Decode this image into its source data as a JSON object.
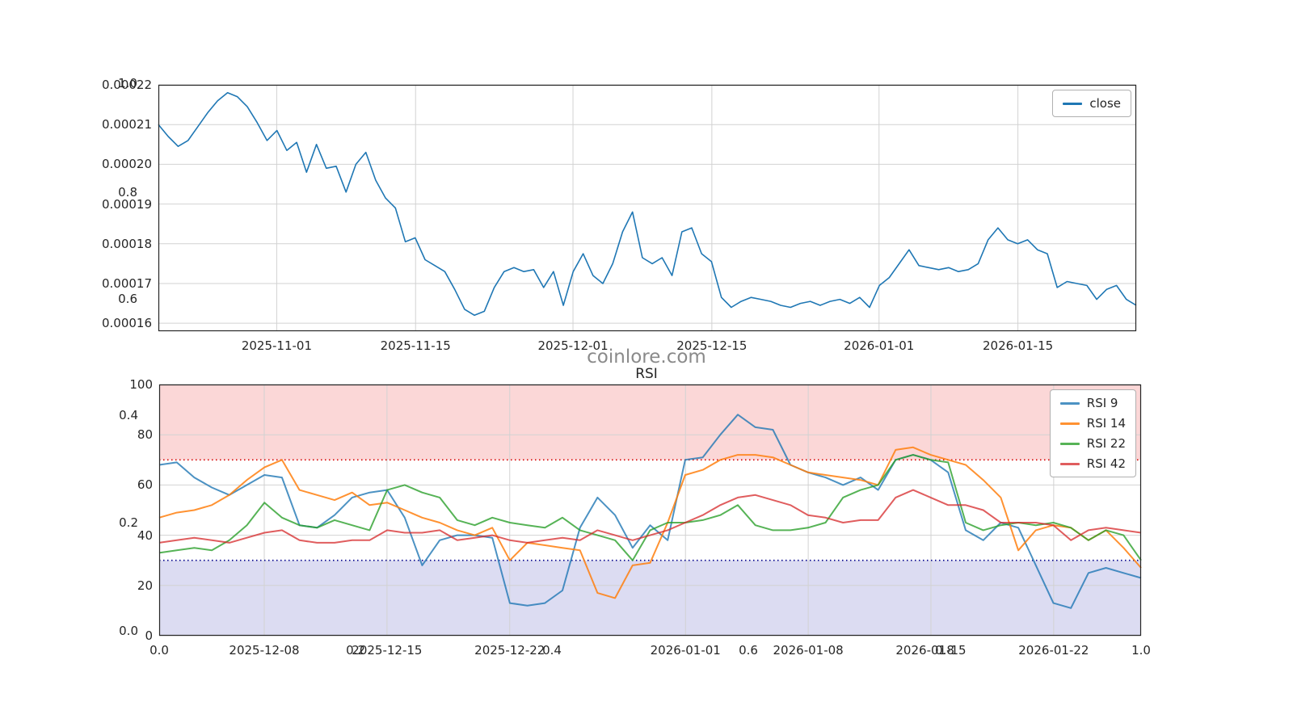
{
  "watermark": "coinlore.com",
  "chart_data": [
    {
      "id": "price",
      "type": "line",
      "title": "",
      "ylim": [
        0.000158,
        0.00022
      ],
      "yticks": [
        {
          "v": 0.00022,
          "label": "0.00022"
        },
        {
          "v": 0.00021,
          "label": "0.00021"
        },
        {
          "v": 0.0002,
          "label": "0.00020"
        },
        {
          "v": 0.00019,
          "label": "0.00019"
        },
        {
          "v": 0.00018,
          "label": "0.00018"
        },
        {
          "v": 0.00017,
          "label": "0.00017"
        },
        {
          "v": 0.00016,
          "label": "0.00016"
        }
      ],
      "xticks": [
        {
          "f": 0.121,
          "label": "2025-11-01"
        },
        {
          "f": 0.263,
          "label": "2025-11-15"
        },
        {
          "f": 0.424,
          "label": "2025-12-01"
        },
        {
          "f": 0.566,
          "label": "2025-12-15"
        },
        {
          "f": 0.737,
          "label": "2026-01-01"
        },
        {
          "f": 0.879,
          "label": "2026-01-15"
        }
      ],
      "extra_yticks": [
        {
          "fy": 1.005,
          "label": "1.0"
        },
        {
          "fy": 0.564,
          "label": "0.8"
        },
        {
          "fy": 0.131,
          "label": "0.6"
        }
      ],
      "extra_xticks": [],
      "bands": [],
      "hlines": [],
      "legend": [
        {
          "label": "close",
          "color": "#1f77b4",
          "opacity": 1
        }
      ],
      "series": [
        {
          "name": "close",
          "color": "#1f77b4",
          "opacity": 1,
          "width": 1.6,
          "values": [
            0.00021,
            0.000207,
            0.0002045,
            0.000206,
            0.0002095,
            0.000213,
            0.000216,
            0.000218,
            0.000217,
            0.0002145,
            0.0002105,
            0.000206,
            0.0002085,
            0.0002035,
            0.0002055,
            0.000198,
            0.000205,
            0.000199,
            0.0001995,
            0.000193,
            0.0002,
            0.000203,
            0.000196,
            0.0001915,
            0.000189,
            0.0001805,
            0.0001815,
            0.000176,
            0.0001745,
            0.000173,
            0.0001685,
            0.0001635,
            0.000162,
            0.000163,
            0.000169,
            0.000173,
            0.000174,
            0.000173,
            0.0001735,
            0.000169,
            0.000173,
            0.0001645,
            0.000173,
            0.0001775,
            0.000172,
            0.00017,
            0.000175,
            0.000183,
            0.000188,
            0.0001765,
            0.000175,
            0.0001765,
            0.000172,
            0.000183,
            0.000184,
            0.0001775,
            0.0001755,
            0.0001665,
            0.000164,
            0.0001655,
            0.0001665,
            0.000166,
            0.0001655,
            0.0001645,
            0.000164,
            0.000165,
            0.0001655,
            0.0001645,
            0.0001655,
            0.000166,
            0.000165,
            0.0001665,
            0.000164,
            0.0001695,
            0.0001715,
            0.000175,
            0.0001785,
            0.0001745,
            0.000174,
            0.0001735,
            0.000174,
            0.000173,
            0.0001735,
            0.000175,
            0.000181,
            0.000184,
            0.000181,
            0.00018,
            0.000181,
            0.0001785,
            0.0001775,
            0.000169,
            0.0001705,
            0.00017,
            0.0001695,
            0.000166,
            0.0001685,
            0.0001695,
            0.000166,
            0.0001645
          ]
        }
      ]
    },
    {
      "id": "rsi",
      "type": "line",
      "title": "RSI",
      "ylim": [
        0,
        100
      ],
      "yticks": [
        {
          "v": 100,
          "label": "100"
        },
        {
          "v": 80,
          "label": "80"
        },
        {
          "v": 60,
          "label": "60"
        },
        {
          "v": 40,
          "label": "40"
        },
        {
          "v": 20,
          "label": "20"
        },
        {
          "v": 0,
          "label": "0"
        }
      ],
      "xticks": [
        {
          "f": 0.107,
          "label": "2025-12-08"
        },
        {
          "f": 0.232,
          "label": "2025-12-15"
        },
        {
          "f": 0.357,
          "label": "2025-12-22"
        },
        {
          "f": 0.536,
          "label": "2026-01-01"
        },
        {
          "f": 0.661,
          "label": "2026-01-08"
        },
        {
          "f": 0.786,
          "label": "2026-01-15"
        },
        {
          "f": 0.911,
          "label": "2026-01-22"
        }
      ],
      "extra_yticks": [
        {
          "fy": 0.878,
          "label": "0.4"
        },
        {
          "fy": 0.45,
          "label": "0.2"
        },
        {
          "fy": 0.019,
          "label": "0.0"
        }
      ],
      "extra_xticks": [
        {
          "f": 0.0,
          "label": "0.0"
        },
        {
          "f": 0.2,
          "label": "0.2"
        },
        {
          "f": 0.4,
          "label": "0.4"
        },
        {
          "f": 0.6,
          "label": "0.6"
        },
        {
          "f": 0.8,
          "label": "0.8"
        },
        {
          "f": 1.0,
          "label": "1.0"
        }
      ],
      "bands": [
        {
          "from": 70,
          "to": 100,
          "color": "#fbd7d7"
        },
        {
          "from": 0,
          "to": 30,
          "color": "#dcdcf2"
        }
      ],
      "hlines": [
        {
          "v": 70,
          "color": "#d40000"
        },
        {
          "v": 30,
          "color": "#00008b"
        }
      ],
      "legend": [
        {
          "label": "RSI 9",
          "color": "#1f77b4",
          "opacity": 0.8
        },
        {
          "label": "RSI 14",
          "color": "#ff7f0e",
          "opacity": 0.85
        },
        {
          "label": "RSI 22",
          "color": "#2ca02c",
          "opacity": 0.8
        },
        {
          "label": "RSI 42",
          "color": "#d62728",
          "opacity": 0.75
        }
      ],
      "series": [
        {
          "name": "RSI 9",
          "color": "#1f77b4",
          "opacity": 0.8,
          "width": 2,
          "values": [
            68,
            69,
            63,
            59,
            56,
            60,
            64,
            63,
            44,
            43,
            48,
            55,
            57,
            58,
            47,
            28,
            38,
            40,
            40,
            39,
            13,
            12,
            13,
            18,
            43,
            55,
            48,
            35,
            44,
            38,
            70,
            71,
            80,
            88,
            83,
            82,
            68,
            65,
            63,
            60,
            63,
            58,
            70,
            72,
            70,
            65,
            42,
            38,
            45,
            43,
            28,
            13,
            11,
            25,
            27,
            25,
            23
          ]
        },
        {
          "name": "RSI 14",
          "color": "#ff7f0e",
          "opacity": 0.85,
          "width": 2,
          "values": [
            47,
            49,
            50,
            52,
            56,
            62,
            67,
            70,
            58,
            56,
            54,
            57,
            52,
            53,
            50,
            47,
            45,
            42,
            40,
            43,
            30,
            37,
            36,
            35,
            34,
            17,
            15,
            28,
            29,
            45,
            64,
            66,
            70,
            72,
            72,
            71,
            68,
            65,
            64,
            63,
            62,
            60,
            74,
            75,
            72,
            70,
            68,
            62,
            55,
            34,
            42,
            44,
            43,
            38,
            42,
            35,
            27
          ]
        },
        {
          "name": "RSI 22",
          "color": "#2ca02c",
          "opacity": 0.8,
          "width": 2,
          "values": [
            33,
            34,
            35,
            34,
            38,
            44,
            53,
            47,
            44,
            43,
            46,
            44,
            42,
            58,
            60,
            57,
            55,
            46,
            44,
            47,
            45,
            44,
            43,
            47,
            42,
            40,
            38,
            30,
            42,
            45,
            45,
            46,
            48,
            52,
            44,
            42,
            42,
            43,
            45,
            55,
            58,
            60,
            70,
            72,
            70,
            69,
            45,
            42,
            44,
            45,
            44,
            45,
            43,
            38,
            42,
            40,
            30
          ]
        },
        {
          "name": "RSI 42",
          "color": "#d62728",
          "opacity": 0.75,
          "width": 2,
          "values": [
            37,
            38,
            39,
            38,
            37,
            39,
            41,
            42,
            38,
            37,
            37,
            38,
            38,
            42,
            41,
            41,
            42,
            38,
            39,
            40,
            38,
            37,
            38,
            39,
            38,
            42,
            40,
            38,
            40,
            42,
            45,
            48,
            52,
            55,
            56,
            54,
            52,
            48,
            47,
            45,
            46,
            46,
            55,
            58,
            55,
            52,
            52,
            50,
            45,
            45,
            45,
            44,
            38,
            42,
            43,
            42,
            41
          ]
        }
      ]
    }
  ]
}
